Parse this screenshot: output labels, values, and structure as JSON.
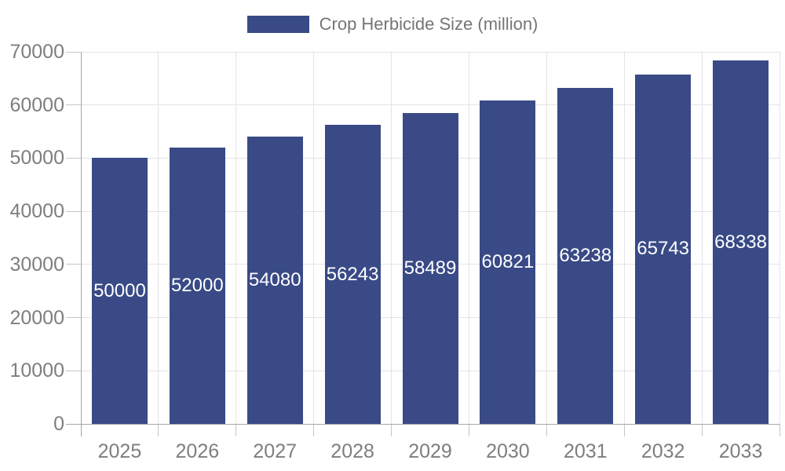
{
  "chart_data": {
    "type": "bar",
    "title": "",
    "series_name": "Crop Herbicide Size (million)",
    "categories": [
      "2025",
      "2026",
      "2027",
      "2028",
      "2029",
      "2030",
      "2031",
      "2032",
      "2033"
    ],
    "values": [
      50000,
      52000,
      54080,
      56243,
      58489,
      60821,
      63238,
      65743,
      68338
    ],
    "xlabel": "",
    "ylabel": "",
    "ylim": [
      0,
      70000
    ],
    "ytick_step": 10000,
    "ytick_labels": [
      "0",
      "10000",
      "20000",
      "30000",
      "40000",
      "50000",
      "60000",
      "70000"
    ],
    "grid": true,
    "legend_position": "top-center",
    "bar_label_position": "inside-center",
    "colors": {
      "bar": "#394A86",
      "bar_label": "#FFFFFF",
      "axis_text": "#7E7E7E",
      "legend_text": "#757575",
      "grid_line": "#E4E4E8",
      "tick_line": "#C6C6C6",
      "axis_line": "#A6A6A6",
      "background": "#FFFFFF"
    }
  }
}
